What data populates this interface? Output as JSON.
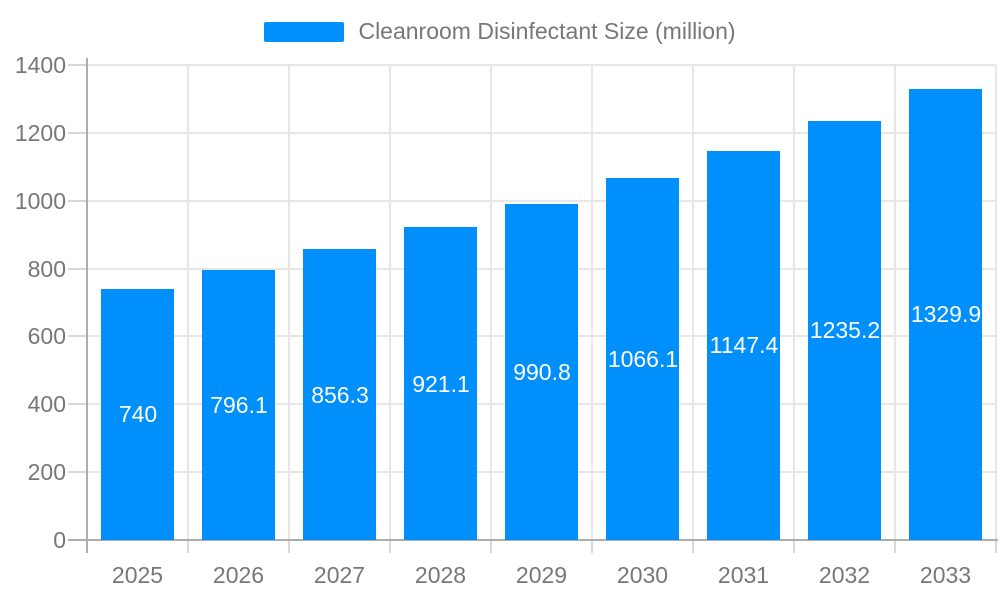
{
  "chart_data": {
    "type": "bar",
    "title": "Cleanroom Disinfectant Size (million)",
    "categories": [
      "2025",
      "2026",
      "2027",
      "2028",
      "2029",
      "2030",
      "2031",
      "2032",
      "2033"
    ],
    "values": [
      740,
      796.1,
      856.3,
      921.1,
      990.8,
      1066.1,
      1147.4,
      1235.2,
      1329.9
    ],
    "value_labels": [
      "740",
      "796.1",
      "856.3",
      "921.1",
      "990.8",
      "1066.1",
      "1147.4",
      "1235.2",
      "1329.9"
    ],
    "xlabel": "",
    "ylabel": "",
    "ylim": [
      0,
      1400
    ],
    "yticks": [
      0,
      200,
      400,
      600,
      800,
      1000,
      1200,
      1400
    ],
    "grid": true,
    "legend_position": "top",
    "colors": {
      "bar": "#008FFB",
      "data_label": "#FFFFFF",
      "axis_label": "#777777",
      "legend_label": "#777777",
      "gridline": "#E7E7E7",
      "tick": "#D8D8D8",
      "axis_line": "#ADADAD",
      "background": "#FFFFFF"
    }
  }
}
